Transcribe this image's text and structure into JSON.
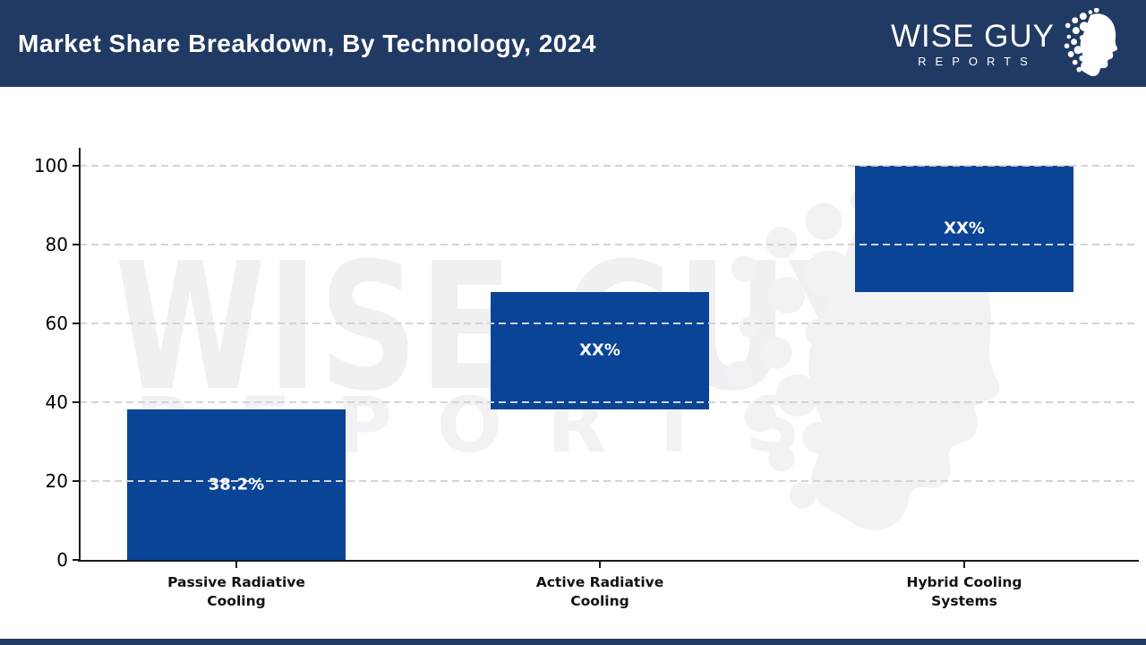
{
  "header": {
    "title": "Market Share Breakdown, By Technology, 2024",
    "brand": {
      "name": "WISE GUY",
      "sub": "REPORTS"
    }
  },
  "watermark": {
    "name": "WISE GUY",
    "sub": "REPORTS"
  },
  "colors": {
    "header_bg": "#213a63",
    "footer_bg": "#213a63",
    "bar": "#0a4496",
    "bar_label": "#ffffff",
    "grid": "#d4d4d4",
    "axis": "#1a1a1a",
    "watermark": "#f0f0f3"
  },
  "chart_data": {
    "type": "bar",
    "subtype": "waterfall",
    "title": "Market Share Breakdown, By Technology, 2024",
    "categories": [
      "Passive Radiative Cooling",
      "Active Radiative Cooling",
      "Hybrid Cooling Systems"
    ],
    "category_lines": [
      [
        "Passive Radiative",
        "Cooling"
      ],
      [
        "Active Radiative",
        "Cooling"
      ],
      [
        "Hybrid Cooling",
        "Systems"
      ]
    ],
    "bars": [
      {
        "category": "Passive Radiative Cooling",
        "start": 0,
        "end": 38.2,
        "label": "38.2%"
      },
      {
        "category": "Active Radiative Cooling",
        "start": 38.2,
        "end": 68,
        "label": "XX%"
      },
      {
        "category": "Hybrid Cooling Systems",
        "start": 68,
        "end": 100,
        "label": "XX%"
      }
    ],
    "xlabel": "",
    "ylabel": "",
    "ylim": [
      0,
      104
    ],
    "yticks": [
      0,
      20,
      40,
      60,
      80,
      100
    ],
    "grid": "horizontal-dashed-on-top",
    "legend": "none",
    "note": "second and third bar values are masked as XX% in source image"
  }
}
